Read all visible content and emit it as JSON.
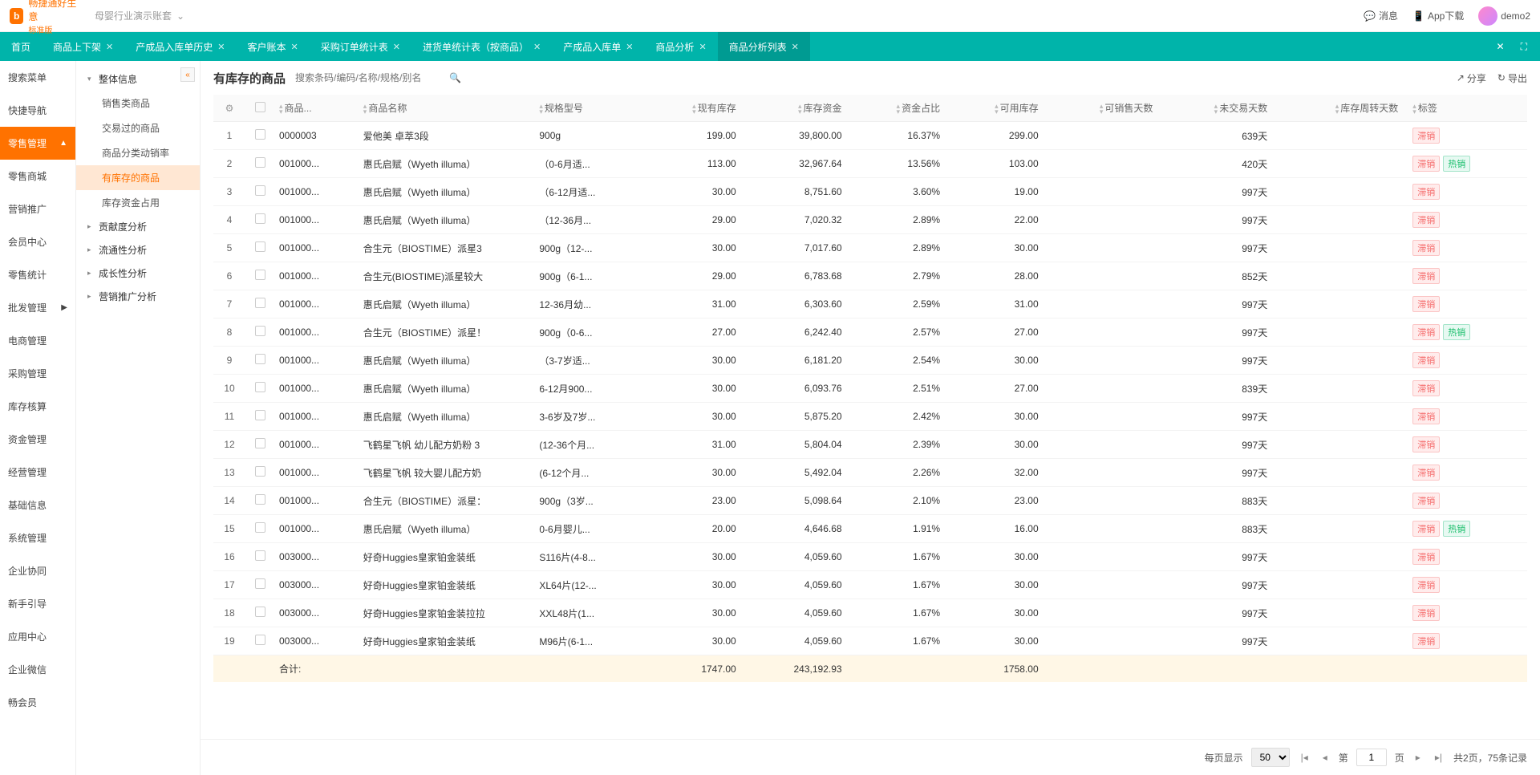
{
  "header": {
    "logo_text": "畅捷通好生意",
    "logo_sub": "标准版",
    "tenant": "母婴行业演示账套",
    "msg": "消息",
    "app": "App下载",
    "user": "demo2"
  },
  "tabs": [
    {
      "label": "首页",
      "closable": false
    },
    {
      "label": "商品上下架",
      "closable": true
    },
    {
      "label": "产成品入库单历史",
      "closable": true
    },
    {
      "label": "客户账本",
      "closable": true
    },
    {
      "label": "采购订单统计表",
      "closable": true
    },
    {
      "label": "进货单统计表（按商品）",
      "closable": true
    },
    {
      "label": "产成品入库单",
      "closable": true
    },
    {
      "label": "商品分析",
      "closable": true
    },
    {
      "label": "商品分析列表",
      "closable": true,
      "active": true
    }
  ],
  "leftNav": [
    {
      "label": "搜索菜单"
    },
    {
      "label": "快捷导航"
    },
    {
      "label": "零售管理",
      "active": true,
      "arrow": "▲"
    },
    {
      "label": "零售商城"
    },
    {
      "label": "营销推广"
    },
    {
      "label": "会员中心"
    },
    {
      "label": "零售统计"
    },
    {
      "label": "批发管理",
      "arrow": "▶"
    },
    {
      "label": "电商管理"
    },
    {
      "label": "采购管理"
    },
    {
      "label": "库存核算"
    },
    {
      "label": "资金管理"
    },
    {
      "label": "经营管理"
    },
    {
      "label": "基础信息"
    },
    {
      "label": "系统管理"
    },
    {
      "label": "企业协同"
    },
    {
      "label": "新手引导"
    },
    {
      "label": "应用中心"
    },
    {
      "label": "企业微信"
    },
    {
      "label": "畅会员"
    }
  ],
  "subNav": {
    "group1": "整体信息",
    "items1": [
      {
        "label": "销售类商品"
      },
      {
        "label": "交易过的商品"
      },
      {
        "label": "商品分类动销率"
      },
      {
        "label": "有库存的商品",
        "active": true
      },
      {
        "label": "库存资金占用"
      }
    ],
    "groups2": [
      "贡献度分析",
      "流通性分析",
      "成长性分析",
      "营销推广分析"
    ]
  },
  "content": {
    "title": "有库存的商品",
    "search_placeholder": "搜索条码/编码/名称/规格/别名",
    "share": "分享",
    "export": "导出"
  },
  "columns": [
    "商品...",
    "商品名称",
    "规格型号",
    "现有库存",
    "库存资金",
    "资金占比",
    "可用库存",
    "可销售天数",
    "未交易天数",
    "库存周转天数",
    "标签"
  ],
  "rows": [
    {
      "idx": 1,
      "code": "0000003",
      "name": "爱他美 卓萃3段",
      "spec": "900g",
      "stock": "199.00",
      "fund": "39,800.00",
      "pct": "16.37%",
      "avail": "299.00",
      "sale": "",
      "notrade": "639天",
      "turn": "",
      "tags": [
        "滞销"
      ]
    },
    {
      "idx": 2,
      "code": "001000...",
      "name": "惠氏启赋（Wyeth illuma）",
      "spec": "（0-6月适...",
      "stock": "113.00",
      "fund": "32,967.64",
      "pct": "13.56%",
      "avail": "103.00",
      "sale": "",
      "notrade": "420天",
      "turn": "",
      "tags": [
        "滞销",
        "热销"
      ]
    },
    {
      "idx": 3,
      "code": "001000...",
      "name": "惠氏启赋（Wyeth illuma）",
      "spec": "（6-12月适...",
      "stock": "30.00",
      "fund": "8,751.60",
      "pct": "3.60%",
      "avail": "19.00",
      "sale": "",
      "notrade": "997天",
      "turn": "",
      "tags": [
        "滞销"
      ]
    },
    {
      "idx": 4,
      "code": "001000...",
      "name": "惠氏启赋（Wyeth illuma）",
      "spec": "（12-36月...",
      "stock": "29.00",
      "fund": "7,020.32",
      "pct": "2.89%",
      "avail": "22.00",
      "sale": "",
      "notrade": "997天",
      "turn": "",
      "tags": [
        "滞销"
      ]
    },
    {
      "idx": 5,
      "code": "001000...",
      "name": "合生元（BIOSTIME）派星3",
      "spec": "900g（12-...",
      "stock": "30.00",
      "fund": "7,017.60",
      "pct": "2.89%",
      "avail": "30.00",
      "sale": "",
      "notrade": "997天",
      "turn": "",
      "tags": [
        "滞销"
      ]
    },
    {
      "idx": 6,
      "code": "001000...",
      "name": "合生元(BIOSTIME)派星较大",
      "spec": "900g（6-1...",
      "stock": "29.00",
      "fund": "6,783.68",
      "pct": "2.79%",
      "avail": "28.00",
      "sale": "",
      "notrade": "852天",
      "turn": "",
      "tags": [
        "滞销"
      ]
    },
    {
      "idx": 7,
      "code": "001000...",
      "name": "惠氏启赋（Wyeth illuma）",
      "spec": "12-36月幼...",
      "stock": "31.00",
      "fund": "6,303.60",
      "pct": "2.59%",
      "avail": "31.00",
      "sale": "",
      "notrade": "997天",
      "turn": "",
      "tags": [
        "滞销"
      ]
    },
    {
      "idx": 8,
      "code": "001000...",
      "name": "合生元（BIOSTIME）派星！",
      "spec": "900g（0-6...",
      "stock": "27.00",
      "fund": "6,242.40",
      "pct": "2.57%",
      "avail": "27.00",
      "sale": "",
      "notrade": "997天",
      "turn": "",
      "tags": [
        "滞销",
        "热销"
      ]
    },
    {
      "idx": 9,
      "code": "001000...",
      "name": "惠氏启赋（Wyeth illuma）",
      "spec": "（3-7岁适...",
      "stock": "30.00",
      "fund": "6,181.20",
      "pct": "2.54%",
      "avail": "30.00",
      "sale": "",
      "notrade": "997天",
      "turn": "",
      "tags": [
        "滞销"
      ]
    },
    {
      "idx": 10,
      "code": "001000...",
      "name": "惠氏启赋（Wyeth illuma）",
      "spec": "6-12月900...",
      "stock": "30.00",
      "fund": "6,093.76",
      "pct": "2.51%",
      "avail": "27.00",
      "sale": "",
      "notrade": "839天",
      "turn": "",
      "tags": [
        "滞销"
      ]
    },
    {
      "idx": 11,
      "code": "001000...",
      "name": "惠氏启赋（Wyeth illuma）",
      "spec": "3-6岁及7岁...",
      "stock": "30.00",
      "fund": "5,875.20",
      "pct": "2.42%",
      "avail": "30.00",
      "sale": "",
      "notrade": "997天",
      "turn": "",
      "tags": [
        "滞销"
      ]
    },
    {
      "idx": 12,
      "code": "001000...",
      "name": "飞鹤星飞帆 幼儿配方奶粉 3",
      "spec": "(12-36个月...",
      "stock": "31.00",
      "fund": "5,804.04",
      "pct": "2.39%",
      "avail": "30.00",
      "sale": "",
      "notrade": "997天",
      "turn": "",
      "tags": [
        "滞销"
      ]
    },
    {
      "idx": 13,
      "code": "001000...",
      "name": "飞鹤星飞帆 较大婴儿配方奶",
      "spec": "(6-12个月...",
      "stock": "30.00",
      "fund": "5,492.04",
      "pct": "2.26%",
      "avail": "32.00",
      "sale": "",
      "notrade": "997天",
      "turn": "",
      "tags": [
        "滞销"
      ]
    },
    {
      "idx": 14,
      "code": "001000...",
      "name": "合生元（BIOSTIME）派星：",
      "spec": "900g（3岁...",
      "stock": "23.00",
      "fund": "5,098.64",
      "pct": "2.10%",
      "avail": "23.00",
      "sale": "",
      "notrade": "883天",
      "turn": "",
      "tags": [
        "滞销"
      ]
    },
    {
      "idx": 15,
      "code": "001000...",
      "name": "惠氏启赋（Wyeth illuma）",
      "spec": "0-6月婴儿...",
      "stock": "20.00",
      "fund": "4,646.68",
      "pct": "1.91%",
      "avail": "16.00",
      "sale": "",
      "notrade": "883天",
      "turn": "",
      "tags": [
        "滞销",
        "热销"
      ]
    },
    {
      "idx": 16,
      "code": "003000...",
      "name": "好奇Huggies皇家铂金装纸",
      "spec": "S116片(4-8...",
      "stock": "30.00",
      "fund": "4,059.60",
      "pct": "1.67%",
      "avail": "30.00",
      "sale": "",
      "notrade": "997天",
      "turn": "",
      "tags": [
        "滞销"
      ]
    },
    {
      "idx": 17,
      "code": "003000...",
      "name": "好奇Huggies皇家铂金装纸",
      "spec": "XL64片(12-...",
      "stock": "30.00",
      "fund": "4,059.60",
      "pct": "1.67%",
      "avail": "30.00",
      "sale": "",
      "notrade": "997天",
      "turn": "",
      "tags": [
        "滞销"
      ]
    },
    {
      "idx": 18,
      "code": "003000...",
      "name": "好奇Huggies皇家铂金装拉拉",
      "spec": "XXL48片(1...",
      "stock": "30.00",
      "fund": "4,059.60",
      "pct": "1.67%",
      "avail": "30.00",
      "sale": "",
      "notrade": "997天",
      "turn": "",
      "tags": [
        "滞销"
      ]
    },
    {
      "idx": 19,
      "code": "003000...",
      "name": "好奇Huggies皇家铂金装纸",
      "spec": "M96片(6-1...",
      "stock": "30.00",
      "fund": "4,059.60",
      "pct": "1.67%",
      "avail": "30.00",
      "sale": "",
      "notrade": "997天",
      "turn": "",
      "tags": [
        "滞销"
      ]
    }
  ],
  "totals": {
    "label": "合计:",
    "stock": "1747.00",
    "fund": "243,192.93",
    "avail": "1758.00"
  },
  "pager": {
    "per_page_label": "每页显示",
    "per_page": "50",
    "page_prefix": "第",
    "page": "1",
    "page_suffix": "页",
    "total": "共2页，75条记录"
  }
}
